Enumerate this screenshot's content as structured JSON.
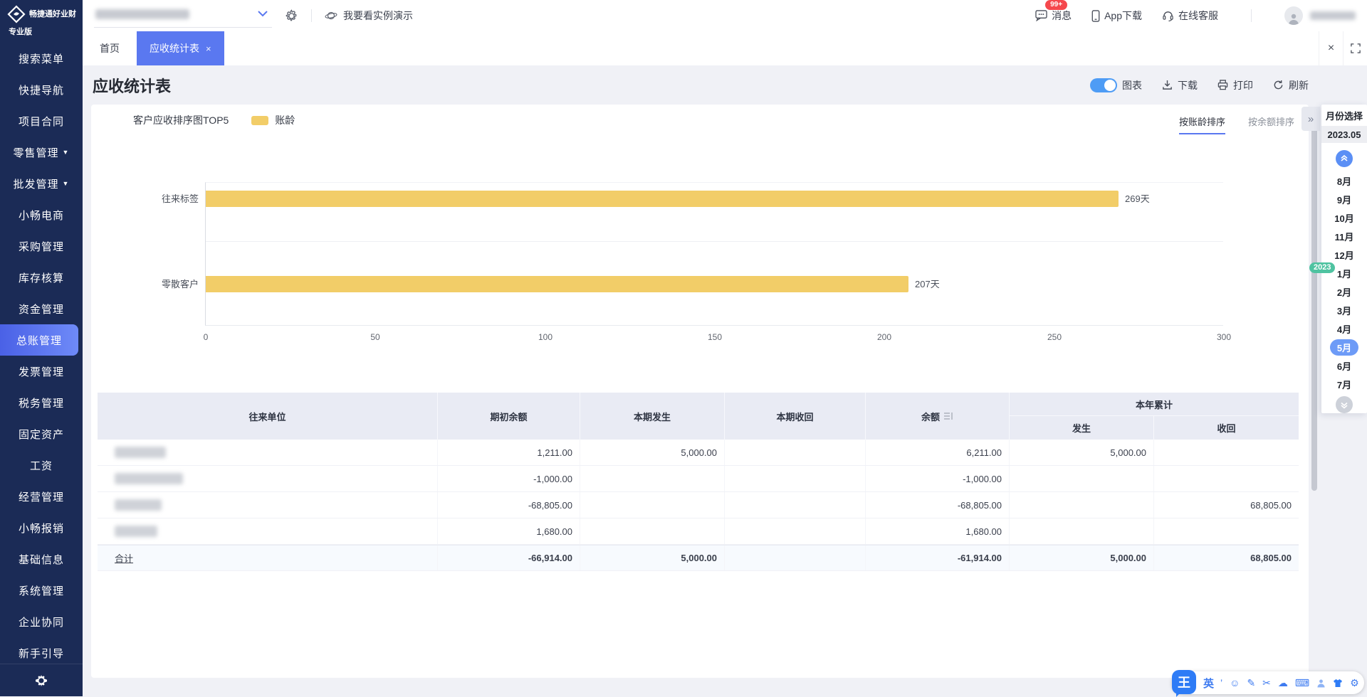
{
  "brand": {
    "name": "畅捷通好业财",
    "edition": "专业版"
  },
  "sidebar": {
    "items": [
      {
        "label": "搜索菜单"
      },
      {
        "label": "快捷导航"
      },
      {
        "label": "项目合同"
      },
      {
        "label": "零售管理",
        "arrow": true
      },
      {
        "label": "批发管理",
        "arrow": true
      },
      {
        "label": "小畅电商"
      },
      {
        "label": "采购管理"
      },
      {
        "label": "库存核算"
      },
      {
        "label": "资金管理"
      },
      {
        "label": "总账管理",
        "active": true
      },
      {
        "label": "发票管理"
      },
      {
        "label": "税务管理"
      },
      {
        "label": "固定资产"
      },
      {
        "label": "工资"
      },
      {
        "label": "经营管理"
      },
      {
        "label": "小畅报销"
      },
      {
        "label": "基础信息"
      },
      {
        "label": "系统管理"
      },
      {
        "label": "企业协同"
      },
      {
        "label": "新手引导"
      }
    ]
  },
  "topbar": {
    "demo_link": "我要看实例演示",
    "messages_label": "消息",
    "messages_badge": "99+",
    "app_download_label": "App下载",
    "support_label": "在线客服"
  },
  "tabs": {
    "home": "首页",
    "active": "应收统计表",
    "close": "×"
  },
  "page": {
    "title": "应收统计表"
  },
  "toolbar": {
    "chart_toggle_label": "图表",
    "download_label": "下载",
    "print_label": "打印",
    "refresh_label": "刷新"
  },
  "sort": {
    "by_age": "按账龄排序",
    "by_balance": "按余额排序"
  },
  "chart_data": {
    "type": "bar",
    "orientation": "horizontal",
    "title": "客户应收排序图TOP5",
    "legend": [
      "账龄"
    ],
    "categories": [
      "往来标签",
      "零散客户"
    ],
    "values": [
      269,
      207
    ],
    "unit": "天",
    "xlim": [
      0,
      300
    ],
    "xticks": [
      0,
      50,
      100,
      150,
      200,
      250,
      300
    ],
    "bar_color": "#F2CD68",
    "grid": true,
    "legend_position": "top"
  },
  "table": {
    "columns": {
      "unit": "往来单位",
      "opening": "期初余额",
      "current_incurred": "本期发生",
      "current_received": "本期收回",
      "balance": "余额",
      "ytd_group": "本年累计",
      "ytd_incurred": "发生",
      "ytd_received": "收回"
    },
    "rows": [
      {
        "masked": true,
        "mask_width": 72,
        "values": [
          "1,211.00",
          "5,000.00",
          "",
          "6,211.00",
          "5,000.00",
          ""
        ]
      },
      {
        "masked": true,
        "mask_width": 96,
        "values": [
          "-1,000.00",
          "",
          "",
          "-1,000.00",
          "",
          ""
        ]
      },
      {
        "masked": true,
        "mask_width": 66,
        "values": [
          "-68,805.00",
          "",
          "",
          "-68,805.00",
          "",
          "68,805.00"
        ]
      },
      {
        "masked": true,
        "mask_width": 60,
        "values": [
          "1,680.00",
          "",
          "",
          "1,680.00",
          "",
          ""
        ]
      }
    ],
    "total": {
      "label": "合计",
      "values": [
        "-66,914.00",
        "5,000.00",
        "",
        "-61,914.00",
        "5,000.00",
        "68,805.00"
      ]
    }
  },
  "month_panel": {
    "title": "月份选择",
    "current": "2023.05",
    "year_badge": "2023",
    "months": [
      {
        "label": "8月"
      },
      {
        "label": "9月"
      },
      {
        "label": "10月"
      },
      {
        "label": "11月"
      },
      {
        "label": "12月"
      },
      {
        "label": "1月"
      },
      {
        "label": "2月"
      },
      {
        "label": "3月"
      },
      {
        "label": "4月"
      },
      {
        "label": "5月",
        "active": true
      },
      {
        "label": "6月"
      },
      {
        "label": "7月"
      }
    ]
  },
  "collapse_glyph": "»",
  "ime": {
    "logo": "王",
    "mode": "英",
    "icons": [
      "quote",
      "smiley",
      "pencil",
      "scissors",
      "cloud",
      "keyboard",
      "person",
      "skin",
      "settings"
    ]
  },
  "colors": {
    "sidebar_bg": "#1B2B56",
    "accent_blue": "#5A78F0",
    "toggle_blue": "#4E9CF5",
    "bar_yellow": "#F2CD68",
    "badge_red": "#F5484D",
    "month_active": "#6D9BF7",
    "year_badge_green": "#4FC3A1"
  }
}
